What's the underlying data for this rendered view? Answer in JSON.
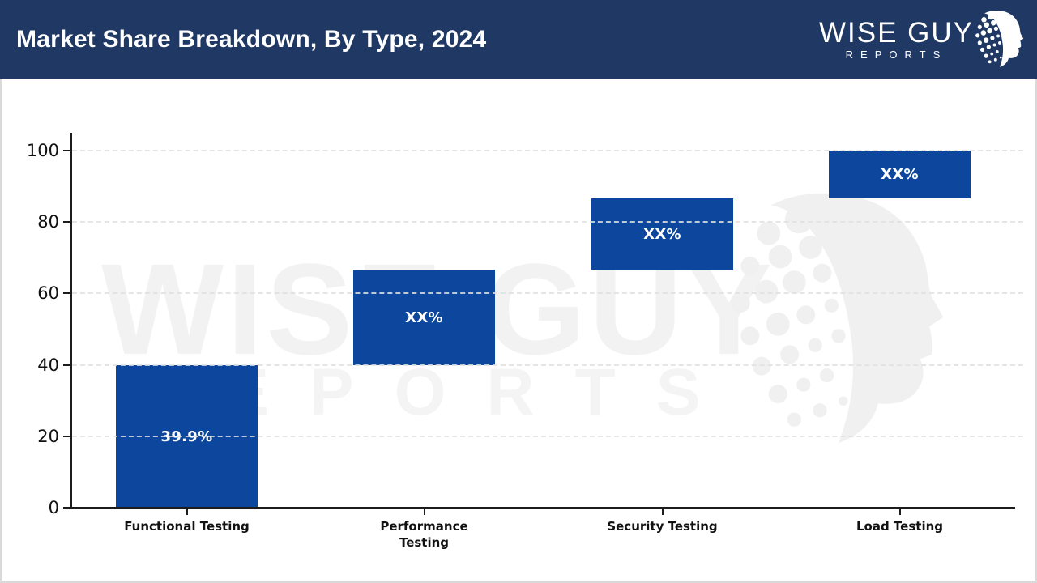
{
  "header": {
    "title": "Market Share Breakdown, By Type, 2024",
    "brand_line1": "WISE GUY",
    "brand_line2": "REPORTS",
    "bg_color": "#1f3864"
  },
  "watermark": {
    "text_top": "WISE GUY",
    "text_bottom": "REPORTS"
  },
  "chart_data": {
    "type": "bar",
    "subtype": "waterfall",
    "title": "Market Share Breakdown, By Type, 2024",
    "categories": [
      "Functional Testing",
      "Performance\nTesting",
      "Security Testing",
      "Load Testing"
    ],
    "series": [
      {
        "name": "Market Share",
        "segments": [
          {
            "category": "Functional Testing",
            "start": 0,
            "end": 39.9,
            "value": 39.9,
            "label": "39.9%"
          },
          {
            "category": "Performance Testing",
            "start": 39.9,
            "end": 66.6,
            "value": 26.7,
            "label": "XX%"
          },
          {
            "category": "Security Testing",
            "start": 66.6,
            "end": 86.6,
            "value": 20.0,
            "label": "XX%"
          },
          {
            "category": "Load Testing",
            "start": 86.6,
            "end": 100,
            "value": 13.4,
            "label": "XX%"
          }
        ]
      }
    ],
    "xlabel": "",
    "ylabel": "",
    "ylim": [
      0,
      100
    ],
    "yticks": [
      0,
      20,
      40,
      60,
      80,
      100
    ],
    "grid": "horizontal-dashed",
    "legend": "none",
    "bar_color": "#0c479d",
    "bar_label_color": "#ffffff",
    "axis_color": "#1c1c1c",
    "gridline_color": "#e0e0e0"
  }
}
